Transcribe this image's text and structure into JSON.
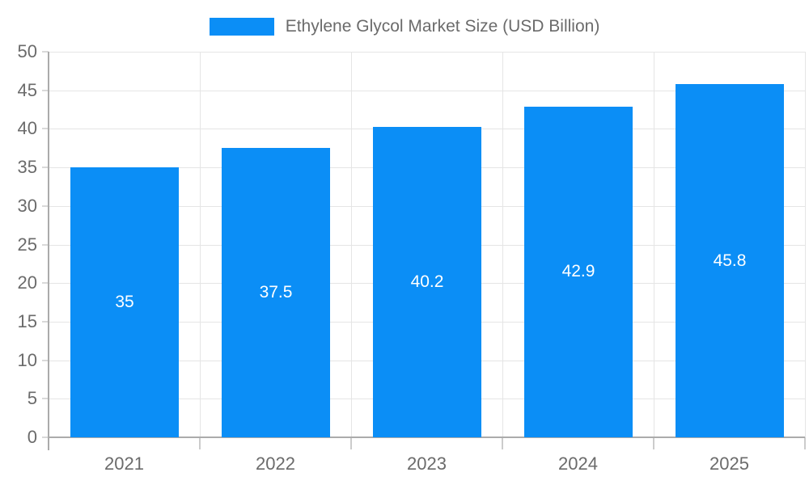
{
  "legend": {
    "swatch_color": "#0b8ef6"
  },
  "chart_data": {
    "type": "bar",
    "title": "Ethylene Glycol Market Size (USD Billion)",
    "categories": [
      "2021",
      "2022",
      "2023",
      "2024",
      "2025"
    ],
    "values": [
      35,
      37.5,
      40.2,
      42.9,
      45.8
    ],
    "value_labels": [
      "35",
      "37.5",
      "40.2",
      "42.9",
      "45.8"
    ],
    "xlabel": "",
    "ylabel": "",
    "ylim": [
      0,
      50
    ],
    "ytick_step": 5,
    "ytick_labels": [
      "0",
      "5",
      "10",
      "15",
      "20",
      "25",
      "30",
      "35",
      "40",
      "45",
      "50"
    ],
    "grid": true,
    "legend_position": "top-center",
    "colors": {
      "bar": "#0b8ef6",
      "bar_label_text": "#ffffff",
      "axis_text": "#6b6b6b",
      "gridline": "#e5e5e5",
      "axis_line": "#ababab"
    }
  }
}
